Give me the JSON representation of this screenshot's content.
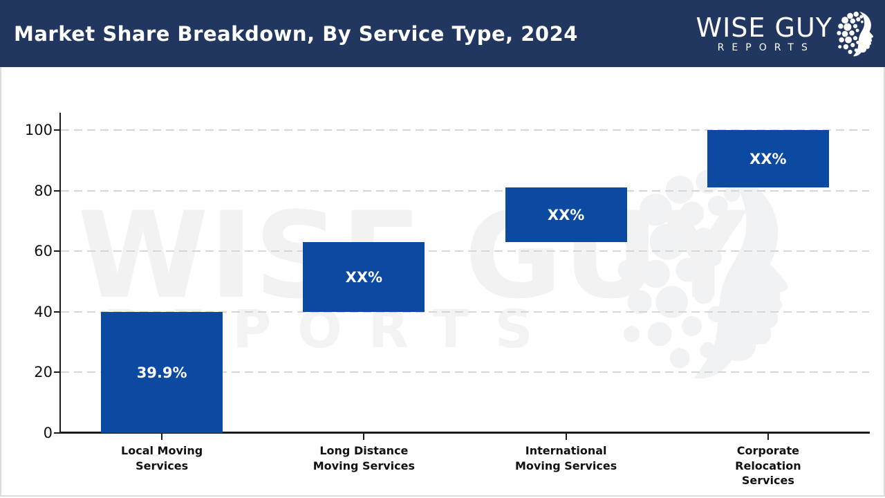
{
  "header": {
    "title": "Market Share Breakdown, By Service Type, 2024",
    "background": "#22375f",
    "logo": {
      "line1": "WISE GUY",
      "line2": "REPORTS",
      "icon": "dotted-face-profile"
    }
  },
  "watermark": {
    "line1": "WISE GUY",
    "line2": "REPORTS",
    "icon": "dotted-face-profile"
  },
  "chart_data": {
    "type": "bar",
    "subtype": "waterfall",
    "title": "Market Share Breakdown, By Service Type, 2024",
    "unit": "percent",
    "categories": [
      "Local Moving\nServices",
      "Long Distance\nMoving Services",
      "International\nMoving Services",
      "Corporate\nRelocation\nServices"
    ],
    "series": [
      {
        "name": "Market share",
        "segments": [
          {
            "start": 0,
            "end": 39.9,
            "label": "39.9%"
          },
          {
            "start": 39.9,
            "end": 63,
            "label": "XX%"
          },
          {
            "start": 63,
            "end": 81,
            "label": "XX%"
          },
          {
            "start": 81,
            "end": 100,
            "label": "XX%"
          }
        ]
      }
    ],
    "ylim": [
      0,
      100
    ],
    "yticks": [
      0,
      20,
      40,
      60,
      80,
      100
    ],
    "grid": "horizontal-dashed",
    "legend": null,
    "colors": {
      "bar": "#0c4aa2",
      "bar_label": "#ffffff",
      "gridline": "#d6d6d6",
      "axis": "#1a1a1a",
      "watermark": "#f2f2f2"
    }
  }
}
